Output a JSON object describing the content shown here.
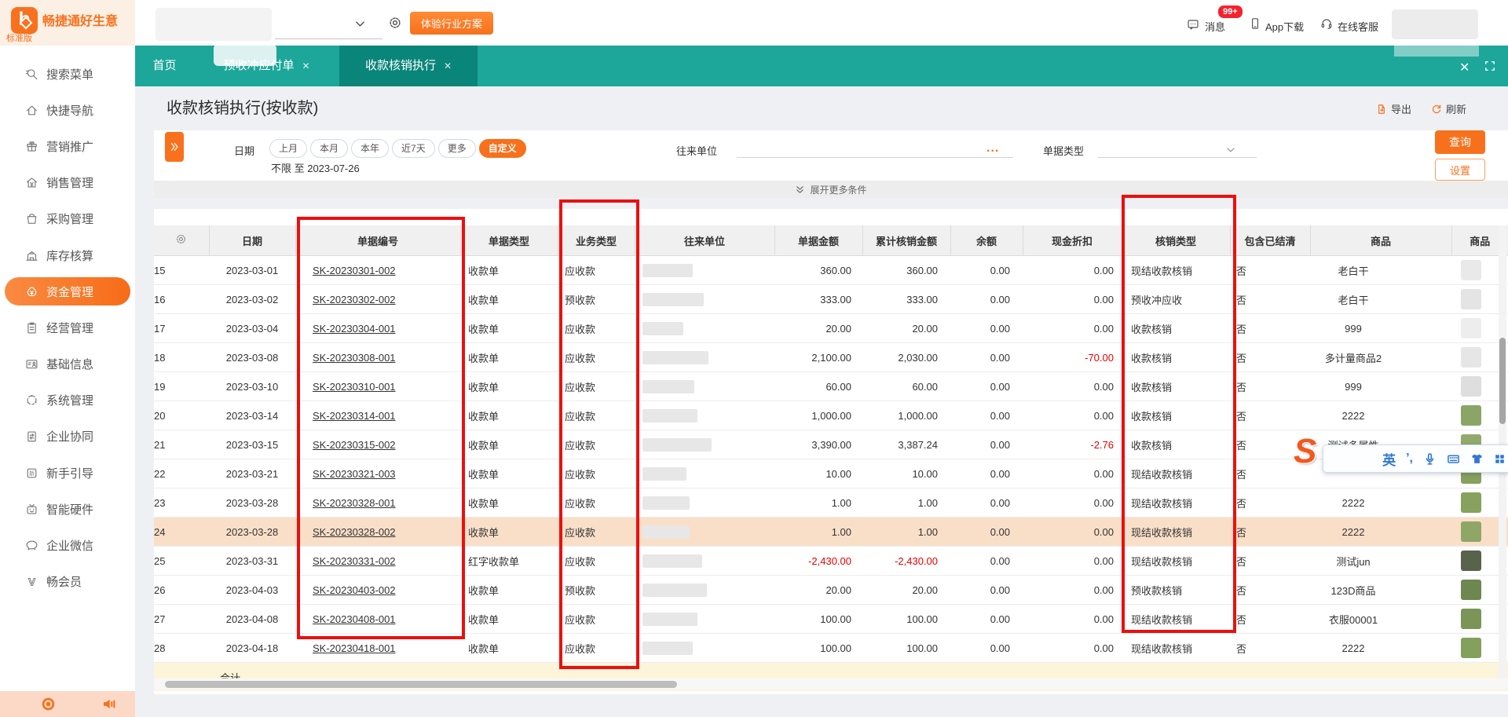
{
  "colors": {
    "accent": "#f7711d",
    "teal": "#1ca79a",
    "teal_active": "#0a8579",
    "negative": "#e60000",
    "badge": "#f5222d",
    "highlight_row": "#f9dfc8",
    "total_row": "#fcf5da"
  },
  "app": {
    "brand": "畅捷通好生意",
    "edition": "标准版",
    "trial_button": "体验行业方案",
    "messages": "消息",
    "messages_badge": "99+",
    "app_download": "App下载",
    "online_service": "在线客服"
  },
  "tabs": [
    {
      "label": "首页",
      "closable": false,
      "active": false
    },
    {
      "label": "预收冲应付单",
      "closable": true,
      "active": false
    },
    {
      "label": "收款核销执行",
      "closable": true,
      "active": true
    }
  ],
  "sidebar": {
    "items": [
      {
        "icon": "search-menu-icon",
        "label": "搜索菜单",
        "active": false
      },
      {
        "icon": "quick-nav-icon",
        "label": "快捷导航",
        "active": false
      },
      {
        "icon": "marketing-icon",
        "label": "营销推广",
        "active": false
      },
      {
        "icon": "sales-icon",
        "label": "销售管理",
        "active": false
      },
      {
        "icon": "purchase-icon",
        "label": "采购管理",
        "active": false
      },
      {
        "icon": "inventory-icon",
        "label": "库存核算",
        "active": false
      },
      {
        "icon": "funds-icon",
        "label": "资金管理",
        "active": true
      },
      {
        "icon": "operations-icon",
        "label": "经营管理",
        "active": false
      },
      {
        "icon": "base-info-icon",
        "label": "基础信息",
        "active": false
      },
      {
        "icon": "system-icon",
        "label": "系统管理",
        "active": false
      },
      {
        "icon": "collab-icon",
        "label": "企业协同",
        "active": false
      },
      {
        "icon": "newbie-icon",
        "label": "新手引导",
        "active": false
      },
      {
        "icon": "hardware-icon",
        "label": "智能硬件",
        "active": false
      },
      {
        "icon": "wechat-icon",
        "label": "企业微信",
        "active": false
      },
      {
        "icon": "member-icon",
        "label": "畅会员",
        "active": false
      }
    ]
  },
  "page": {
    "title": "收款核销执行(按收款)",
    "export": "导出",
    "refresh": "刷新"
  },
  "filters": {
    "date_label": "日期",
    "pills": [
      "上月",
      "本月",
      "本年",
      "近7天",
      "更多"
    ],
    "custom_pill": "自定义",
    "date_range": "不限 至 2023-07-26",
    "party_label": "往来单位",
    "party_more": "...",
    "doc_type_label": "单据类型",
    "search": "查询",
    "settings": "设置",
    "expand_more": "展开更多条件"
  },
  "table": {
    "headers": [
      "日期",
      "单据编号",
      "单据类型",
      "业务类型",
      "往来单位",
      "单据金额",
      "累计核销金额",
      "余额",
      "现金折扣",
      "核销类型",
      "包含已结清",
      "商品",
      "商品"
    ],
    "footer_label": "合计",
    "rows": [
      {
        "num": "15",
        "date": "2023-03-01",
        "doc_no": "SK-20230301-002",
        "doc_type": "收款单",
        "biz_type": "应收款",
        "amount": "360.00",
        "settled": "360.00",
        "balance": "0.00",
        "discount": "0.00",
        "settle_type": "现结收款核销",
        "included": "否",
        "product": "老白干",
        "thumb": "#e9e9e9",
        "highlight": false
      },
      {
        "num": "16",
        "date": "2023-03-02",
        "doc_no": "SK-20230302-002",
        "doc_type": "收款单",
        "biz_type": "预收款",
        "amount": "333.00",
        "settled": "333.00",
        "balance": "0.00",
        "discount": "0.00",
        "settle_type": "预收冲应收",
        "included": "否",
        "product": "老白干",
        "thumb": "#e4e4e4",
        "highlight": false
      },
      {
        "num": "17",
        "date": "2023-03-04",
        "doc_no": "SK-20230304-001",
        "doc_type": "收款单",
        "biz_type": "应收款",
        "amount": "20.00",
        "settled": "20.00",
        "balance": "0.00",
        "discount": "0.00",
        "settle_type": "收款核销",
        "included": "否",
        "product": "999",
        "thumb": "#ededed",
        "highlight": false
      },
      {
        "num": "18",
        "date": "2023-03-08",
        "doc_no": "SK-20230308-001",
        "doc_type": "收款单",
        "biz_type": "应收款",
        "amount": "2,100.00",
        "settled": "2,030.00",
        "balance": "0.00",
        "discount": "-70.00",
        "settle_type": "收款核销",
        "included": "否",
        "product": "多计量商品2",
        "thumb": "#e6e6e6",
        "highlight": false
      },
      {
        "num": "19",
        "date": "2023-03-10",
        "doc_no": "SK-20230310-001",
        "doc_type": "收款单",
        "biz_type": "应收款",
        "amount": "60.00",
        "settled": "60.00",
        "balance": "0.00",
        "discount": "0.00",
        "settle_type": "收款核销",
        "included": "否",
        "product": "999",
        "thumb": "#dedede",
        "highlight": false
      },
      {
        "num": "20",
        "date": "2023-03-14",
        "doc_no": "SK-20230314-001",
        "doc_type": "收款单",
        "biz_type": "应收款",
        "amount": "1,000.00",
        "settled": "1,000.00",
        "balance": "0.00",
        "discount": "0.00",
        "settle_type": "收款核销",
        "included": "否",
        "product": "2222",
        "thumb": "#8ba567",
        "highlight": false
      },
      {
        "num": "21",
        "date": "2023-03-15",
        "doc_no": "SK-20230315-002",
        "doc_type": "收款单",
        "biz_type": "应收款",
        "amount": "3,390.00",
        "settled": "3,387.24",
        "balance": "0.00",
        "discount": "-2.76",
        "settle_type": "收款核销",
        "included": "否",
        "product": "测试多属性",
        "thumb": "#92a96c",
        "highlight": false
      },
      {
        "num": "22",
        "date": "2023-03-21",
        "doc_no": "SK-20230321-003",
        "doc_type": "收款单",
        "biz_type": "应收款",
        "amount": "10.00",
        "settled": "10.00",
        "balance": "0.00",
        "discount": "0.00",
        "settle_type": "现结收款核销",
        "included": "否",
        "product": "",
        "thumb": "#87a160",
        "highlight": false
      },
      {
        "num": "23",
        "date": "2023-03-28",
        "doc_no": "SK-20230328-001",
        "doc_type": "收款单",
        "biz_type": "应收款",
        "amount": "1.00",
        "settled": "1.00",
        "balance": "0.00",
        "discount": "0.00",
        "settle_type": "现结收款核销",
        "included": "否",
        "product": "2222",
        "thumb": "#86a25e",
        "highlight": false
      },
      {
        "num": "24",
        "date": "2023-03-28",
        "doc_no": "SK-20230328-002",
        "doc_type": "收款单",
        "biz_type": "应收款",
        "amount": "1.00",
        "settled": "1.00",
        "balance": "0.00",
        "discount": "0.00",
        "settle_type": "现结收款核销",
        "included": "否",
        "product": "2222",
        "thumb": "#8fa766",
        "highlight": true
      },
      {
        "num": "25",
        "date": "2023-03-31",
        "doc_no": "SK-20230331-002",
        "doc_type": "红字收款单",
        "biz_type": "应收款",
        "amount": "-2,430.00",
        "settled": "-2,430.00",
        "balance": "0.00",
        "discount": "0.00",
        "settle_type": "现结收款核销",
        "included": "否",
        "product": "测试jun",
        "thumb": "#59624a",
        "highlight": false
      },
      {
        "num": "26",
        "date": "2023-04-03",
        "doc_no": "SK-20230403-002",
        "doc_type": "收款单",
        "biz_type": "预收款",
        "amount": "20.00",
        "settled": "20.00",
        "balance": "0.00",
        "discount": "0.00",
        "settle_type": "预收款核销",
        "included": "否",
        "product": "123D商品",
        "thumb": "#6e8751",
        "highlight": false
      },
      {
        "num": "27",
        "date": "2023-04-08",
        "doc_no": "SK-20230408-001",
        "doc_type": "收款单",
        "biz_type": "应收款",
        "amount": "100.00",
        "settled": "100.00",
        "balance": "0.00",
        "discount": "0.00",
        "settle_type": "现结收款核销",
        "included": "否",
        "product": "衣服00001",
        "thumb": "#7b9457",
        "highlight": false
      },
      {
        "num": "28",
        "date": "2023-04-18",
        "doc_no": "SK-20230418-001",
        "doc_type": "收款单",
        "biz_type": "应收款",
        "amount": "100.00",
        "settled": "100.00",
        "balance": "0.00",
        "discount": "0.00",
        "settle_type": "现结收款核销",
        "included": "否",
        "product": "2222",
        "thumb": "#83a05d",
        "highlight": false
      }
    ]
  },
  "ime": {
    "name": "Sogou",
    "lang_indicator": "英",
    "punct": "’,"
  }
}
